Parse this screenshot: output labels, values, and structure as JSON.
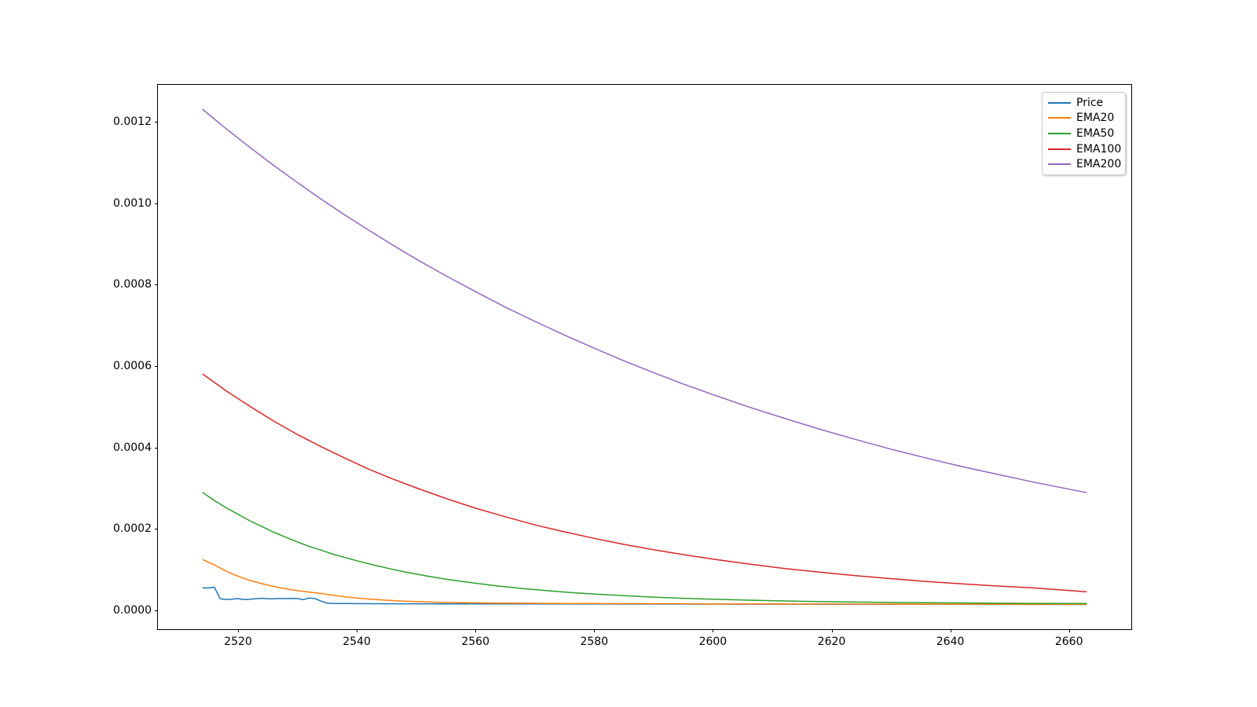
{
  "chart_data": {
    "type": "line",
    "title": "",
    "xlabel": "",
    "ylabel": "",
    "grid": false,
    "background": "#ffffff",
    "axis_color": "#000000",
    "legend_position": "upper right",
    "xlim": [
      2506.5,
      2670.5
    ],
    "ylim": [
      -4.63e-05,
      0.0012908
    ],
    "x_ticks": {
      "values": [
        2520,
        2540,
        2560,
        2580,
        2600,
        2620,
        2640,
        2660
      ],
      "labels": [
        "2520",
        "2540",
        "2560",
        "2580",
        "2600",
        "2620",
        "2640",
        "2660"
      ]
    },
    "y_ticks": {
      "values": [
        0.0,
        0.0002,
        0.0004,
        0.0006,
        0.0008,
        0.001,
        0.0012
      ],
      "labels": [
        "0.0000",
        "0.0002",
        "0.0004",
        "0.0006",
        "0.0008",
        "0.0010",
        "0.0012"
      ]
    },
    "series": [
      {
        "name": "Price",
        "color": "#1f77b4",
        "points": [
          [
            2514,
            5.55e-05
          ],
          [
            2515,
            5.5e-05
          ],
          [
            2516,
            5.7e-05
          ],
          [
            2517,
            2.85e-05
          ],
          [
            2518,
            2.68e-05
          ],
          [
            2519,
            2.75e-05
          ],
          [
            2520,
            2.9e-05
          ],
          [
            2521,
            2.66e-05
          ],
          [
            2522,
            2.72e-05
          ],
          [
            2523,
            2.88e-05
          ],
          [
            2524,
            2.98e-05
          ],
          [
            2525,
            2.85e-05
          ],
          [
            2526,
            2.86e-05
          ],
          [
            2527,
            2.92e-05
          ],
          [
            2528,
            2.9e-05
          ],
          [
            2529,
            2.95e-05
          ],
          [
            2530,
            2.92e-05
          ],
          [
            2531,
            2.62e-05
          ],
          [
            2532,
            3.05e-05
          ],
          [
            2533,
            2.9e-05
          ],
          [
            2534,
            2.25e-05
          ],
          [
            2535,
            1.78e-05
          ],
          [
            2536,
            1.7e-05
          ],
          [
            2538,
            1.67e-05
          ],
          [
            2542,
            1.65e-05
          ],
          [
            2548,
            1.63e-05
          ],
          [
            2556,
            1.61e-05
          ],
          [
            2566,
            1.59e-05
          ],
          [
            2578,
            1.57e-05
          ],
          [
            2592,
            1.55e-05
          ],
          [
            2608,
            1.52e-05
          ],
          [
            2626,
            1.5e-05
          ],
          [
            2644,
            1.47e-05
          ],
          [
            2663,
            1.45e-05
          ]
        ]
      },
      {
        "name": "EMA20",
        "color": "#ff7f0e",
        "points": [
          [
            2514,
            0.000125
          ],
          [
            2515,
            0.000118
          ],
          [
            2516,
            0.000112
          ],
          [
            2517,
            0.000104
          ],
          [
            2518,
            9.66e-05
          ],
          [
            2519,
            9e-05
          ],
          [
            2520,
            8.4e-05
          ],
          [
            2521,
            7.86e-05
          ],
          [
            2522,
            7.37e-05
          ],
          [
            2523,
            6.95e-05
          ],
          [
            2524,
            6.57e-05
          ],
          [
            2525,
            6.21e-05
          ],
          [
            2526,
            5.89e-05
          ],
          [
            2527,
            5.59e-05
          ],
          [
            2528,
            5.32e-05
          ],
          [
            2529,
            5.08e-05
          ],
          [
            2530,
            4.86e-05
          ],
          [
            2531,
            4.66e-05
          ],
          [
            2532,
            4.48e-05
          ],
          [
            2533,
            4.32e-05
          ],
          [
            2534,
            4.17e-05
          ],
          [
            2535,
            3.93e-05
          ],
          [
            2536,
            3.71e-05
          ],
          [
            2537,
            3.52e-05
          ],
          [
            2538,
            3.34e-05
          ],
          [
            2539,
            3.18e-05
          ],
          [
            2540,
            3.04e-05
          ],
          [
            2542,
            2.79e-05
          ],
          [
            2544,
            2.58e-05
          ],
          [
            2546,
            2.41e-05
          ],
          [
            2548,
            2.27e-05
          ],
          [
            2550,
            2.16e-05
          ],
          [
            2552,
            2.07e-05
          ],
          [
            2554,
            1.99e-05
          ],
          [
            2556,
            1.93e-05
          ],
          [
            2558,
            1.88e-05
          ],
          [
            2560,
            1.84e-05
          ],
          [
            2565,
            1.77e-05
          ],
          [
            2570,
            1.73e-05
          ],
          [
            2575,
            1.7e-05
          ],
          [
            2580,
            1.68e-05
          ],
          [
            2590,
            1.64e-05
          ],
          [
            2600,
            1.61e-05
          ],
          [
            2610,
            1.59e-05
          ],
          [
            2620,
            1.56e-05
          ],
          [
            2640,
            1.52e-05
          ],
          [
            2663,
            1.48e-05
          ]
        ]
      },
      {
        "name": "EMA50",
        "color": "#2ca02c",
        "points": [
          [
            2514,
            0.00029
          ],
          [
            2516,
            0.00027
          ],
          [
            2518,
            0.000252
          ],
          [
            2520,
            0.000236
          ],
          [
            2522,
            0.00022
          ],
          [
            2524,
            0.000206
          ],
          [
            2526,
            0.000192
          ],
          [
            2528,
            0.00018
          ],
          [
            2530,
            0.000168
          ],
          [
            2532,
            0.000157
          ],
          [
            2534,
            0.000148
          ],
          [
            2536,
            0.000138
          ],
          [
            2538,
            0.00013
          ],
          [
            2540,
            0.000122
          ],
          [
            2543,
            0.000111
          ],
          [
            2546,
            0.000101
          ],
          [
            2549,
            9.18e-05
          ],
          [
            2552,
            8.39e-05
          ],
          [
            2555,
            7.68e-05
          ],
          [
            2558,
            7.05e-05
          ],
          [
            2561,
            6.48e-05
          ],
          [
            2564,
            5.97e-05
          ],
          [
            2568,
            5.37e-05
          ],
          [
            2572,
            4.85e-05
          ],
          [
            2576,
            4.4e-05
          ],
          [
            2580,
            4.01e-05
          ],
          [
            2585,
            3.6e-05
          ],
          [
            2590,
            3.26e-05
          ],
          [
            2595,
            2.97e-05
          ],
          [
            2600,
            2.74e-05
          ],
          [
            2606,
            2.5e-05
          ],
          [
            2612,
            2.32e-05
          ],
          [
            2618,
            2.17e-05
          ],
          [
            2624,
            2.05e-05
          ],
          [
            2630,
            1.95e-05
          ],
          [
            2638,
            1.85e-05
          ],
          [
            2646,
            1.77e-05
          ],
          [
            2654,
            1.71e-05
          ],
          [
            2663,
            1.67e-05
          ]
        ]
      },
      {
        "name": "EMA100",
        "color": "#d62728",
        "points": [
          [
            2514,
            0.000581
          ],
          [
            2518,
            0.000539
          ],
          [
            2522,
            0.000501
          ],
          [
            2526,
            0.000465
          ],
          [
            2530,
            0.000432
          ],
          [
            2534,
            0.000402
          ],
          [
            2538,
            0.000374
          ],
          [
            2542,
            0.000347
          ],
          [
            2546,
            0.000323
          ],
          [
            2550,
            0.000301
          ],
          [
            2555,
            0.000275
          ],
          [
            2560,
            0.000251
          ],
          [
            2565,
            0.00023
          ],
          [
            2570,
            0.00021
          ],
          [
            2575,
            0.000193
          ],
          [
            2580,
            0.000177
          ],
          [
            2585,
            0.000162
          ],
          [
            2590,
            0.000149
          ],
          [
            2595,
            0.000137
          ],
          [
            2600,
            0.000126
          ],
          [
            2606,
            0.000114
          ],
          [
            2612,
            0.000103
          ],
          [
            2618,
            9.38e-05
          ],
          [
            2624,
            8.54e-05
          ],
          [
            2630,
            7.79e-05
          ],
          [
            2636,
            7.11e-05
          ],
          [
            2642,
            6.52e-05
          ],
          [
            2648,
            5.98e-05
          ],
          [
            2654,
            5.51e-05
          ],
          [
            2663,
            4.55e-05
          ]
        ]
      },
      {
        "name": "EMA200",
        "color": "#9467bd",
        "points": [
          [
            2514,
            0.001231
          ],
          [
            2518,
            0.001183
          ],
          [
            2522,
            0.001137
          ],
          [
            2526,
            0.001093
          ],
          [
            2530,
            0.001051
          ],
          [
            2534,
            0.00101
          ],
          [
            2538,
            0.000971
          ],
          [
            2542,
            0.000934
          ],
          [
            2546,
            0.000898
          ],
          [
            2550,
            0.000863
          ],
          [
            2555,
            0.000822
          ],
          [
            2560,
            0.000783
          ],
          [
            2565,
            0.000745
          ],
          [
            2570,
            0.00071
          ],
          [
            2575,
            0.000676
          ],
          [
            2580,
            0.000644
          ],
          [
            2585,
            0.000613
          ],
          [
            2590,
            0.000584
          ],
          [
            2595,
            0.000556
          ],
          [
            2600,
            0.00053
          ],
          [
            2606,
            0.0005
          ],
          [
            2612,
            0.000472
          ],
          [
            2618,
            0.000445
          ],
          [
            2624,
            0.00042
          ],
          [
            2630,
            0.000396
          ],
          [
            2636,
            0.000374
          ],
          [
            2642,
            0.000353
          ],
          [
            2648,
            0.000334
          ],
          [
            2654,
            0.000315
          ],
          [
            2663,
            0.000289
          ]
        ]
      }
    ]
  }
}
